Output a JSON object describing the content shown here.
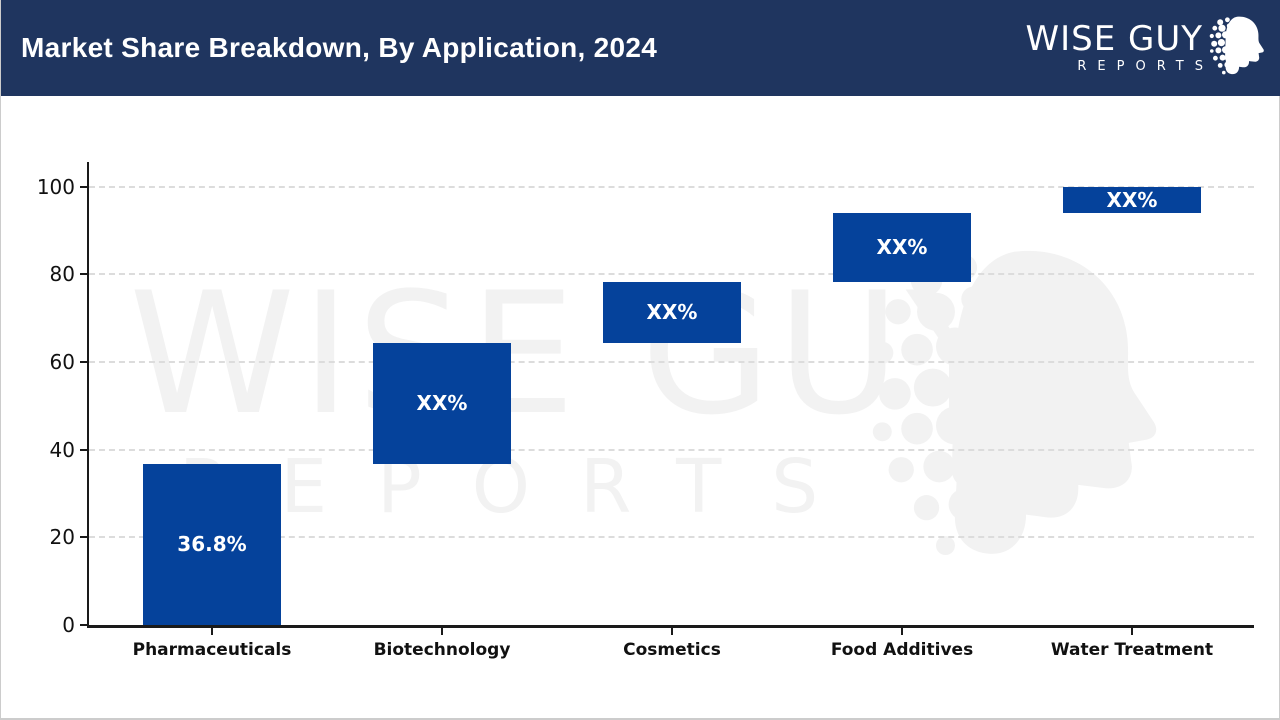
{
  "header": {
    "title": "Market Share Breakdown, By Application, 2024",
    "brand": {
      "line1": "WISE GUY",
      "line2": "REPORTS"
    },
    "bg_color": "#1f355f"
  },
  "watermark": {
    "line1": "WISE GUY",
    "line2": "REPORTS"
  },
  "chart_data": {
    "type": "bar",
    "variant": "waterfall",
    "title": "Market Share Breakdown, By Application, 2024",
    "categories": [
      "Pharmaceuticals",
      "Biotechnology",
      "Cosmetics",
      "Food Additives",
      "Water Treatment"
    ],
    "segments": [
      {
        "category": "Pharmaceuticals",
        "start": 0,
        "end": 36.8,
        "value_label": "36.8%"
      },
      {
        "category": "Biotechnology",
        "start": 36.8,
        "end": 64.4,
        "value_label": "XX%"
      },
      {
        "category": "Cosmetics",
        "start": 64.4,
        "end": 78.3,
        "value_label": "XX%"
      },
      {
        "category": "Food Additives",
        "start": 78.3,
        "end": 93.9,
        "value_label": "XX%"
      },
      {
        "category": "Water Treatment",
        "start": 93.9,
        "end": 100,
        "value_label": "XX%"
      }
    ],
    "xlabel": "",
    "ylabel": "",
    "y_ticks": [
      0,
      20,
      40,
      60,
      80,
      100
    ],
    "ylim": [
      0,
      106
    ],
    "bar_color": "#05429b",
    "grid": {
      "horizontal": true,
      "style": "dashed",
      "color": "#dcdcdc"
    },
    "legend": "none",
    "unit": "percent"
  }
}
